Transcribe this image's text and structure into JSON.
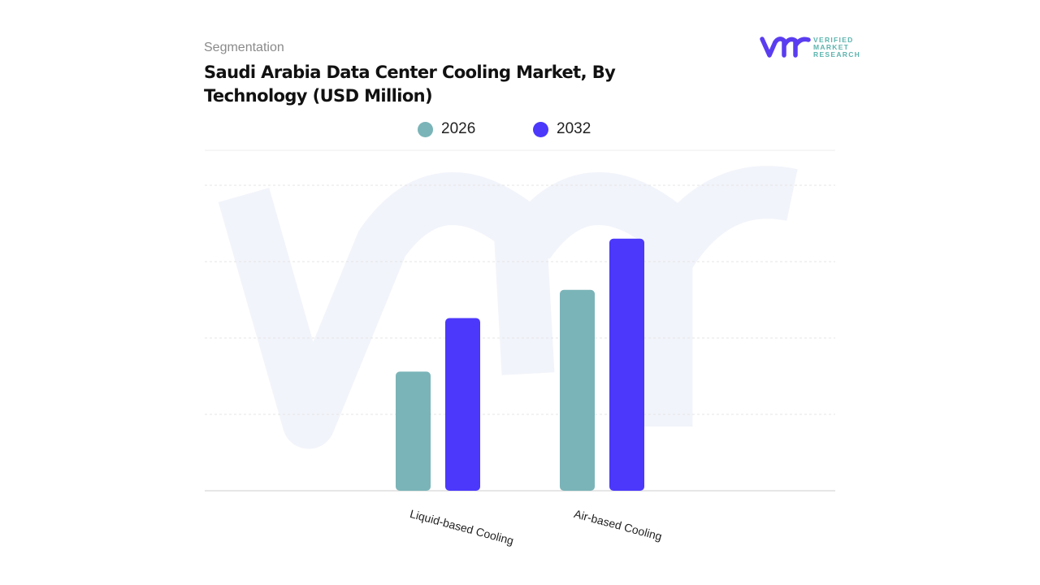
{
  "header": {
    "segment_label": "Segmentation",
    "title": "Saudi Arabia Data Center Cooling Market, By Technology (USD Million)"
  },
  "logo": {
    "text_lines": [
      "VERIFIED",
      "MARKET",
      "RESEARCH"
    ],
    "mark": "vmr",
    "colors": {
      "mark": "#5a3df0",
      "text": "#5bb3ad"
    }
  },
  "chart_data": {
    "type": "bar",
    "title": "Saudi Arabia Data Center Cooling Market, By Technology (USD Million)",
    "categories": [
      "Liquid-based Cooling",
      "Air-based Cooling"
    ],
    "series": [
      {
        "name": "2026",
        "color": "#7ab4b8",
        "values": [
          1.56,
          2.63
        ]
      },
      {
        "name": "2032",
        "color": "#4b38fb",
        "values": [
          2.26,
          3.3
        ]
      }
    ],
    "ylim": [
      0,
      4
    ],
    "y_ticks_labeled": false,
    "grid": true,
    "legend_placement": "top-center",
    "note_values": "relative estimates; no y-axis values printed"
  }
}
